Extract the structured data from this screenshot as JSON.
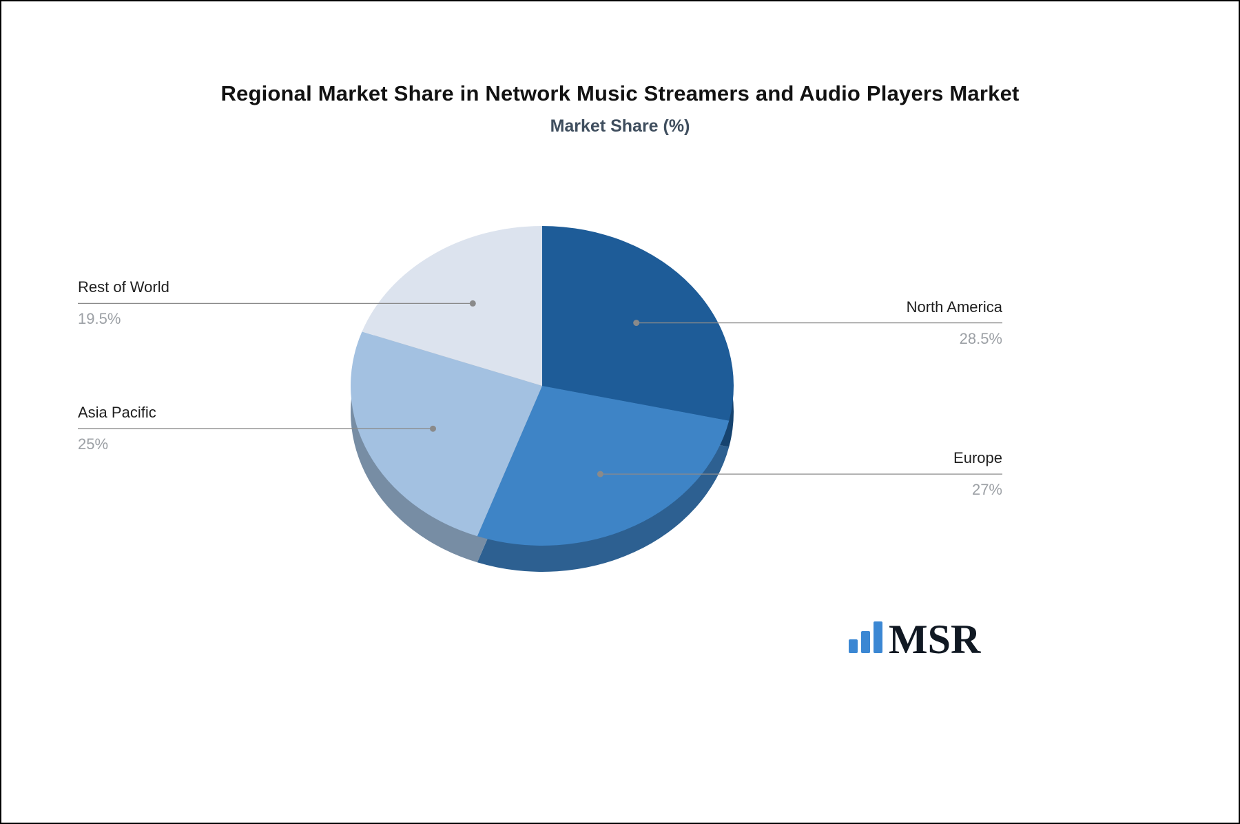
{
  "header": {
    "title": "Regional Market Share in Network Music Streamers and Audio Players Market",
    "subtitle": "Market Share (%)"
  },
  "chart_data": {
    "type": "pie",
    "title": "Regional Market Share in Network Music Streamers and Audio Players Market",
    "subtitle": "Market Share (%)",
    "unit": "%",
    "effect": "3d",
    "start_angle_deg": 0,
    "direction": "clockwise",
    "legend": false,
    "labels_position": "outside-with-leader-lines",
    "slices": [
      {
        "label": "North America",
        "value": 28.5,
        "display": "28.5%",
        "color": "#1e5c98"
      },
      {
        "label": "Europe",
        "value": 27,
        "display": "27%",
        "color": "#3e84c6"
      },
      {
        "label": "Asia Pacific",
        "value": 25,
        "display": "25%",
        "color": "#a3c1e1"
      },
      {
        "label": "Rest of World",
        "value": 19.5,
        "display": "19.5%",
        "color": "#dce3ee"
      }
    ],
    "label_color": "#1f1f1f",
    "value_color": "#9ca0a5",
    "leader_line_color": "#8a8a8a"
  },
  "logo": {
    "text": "MSR",
    "bars_color": "#3b87d3",
    "text_color": "#101822"
  }
}
